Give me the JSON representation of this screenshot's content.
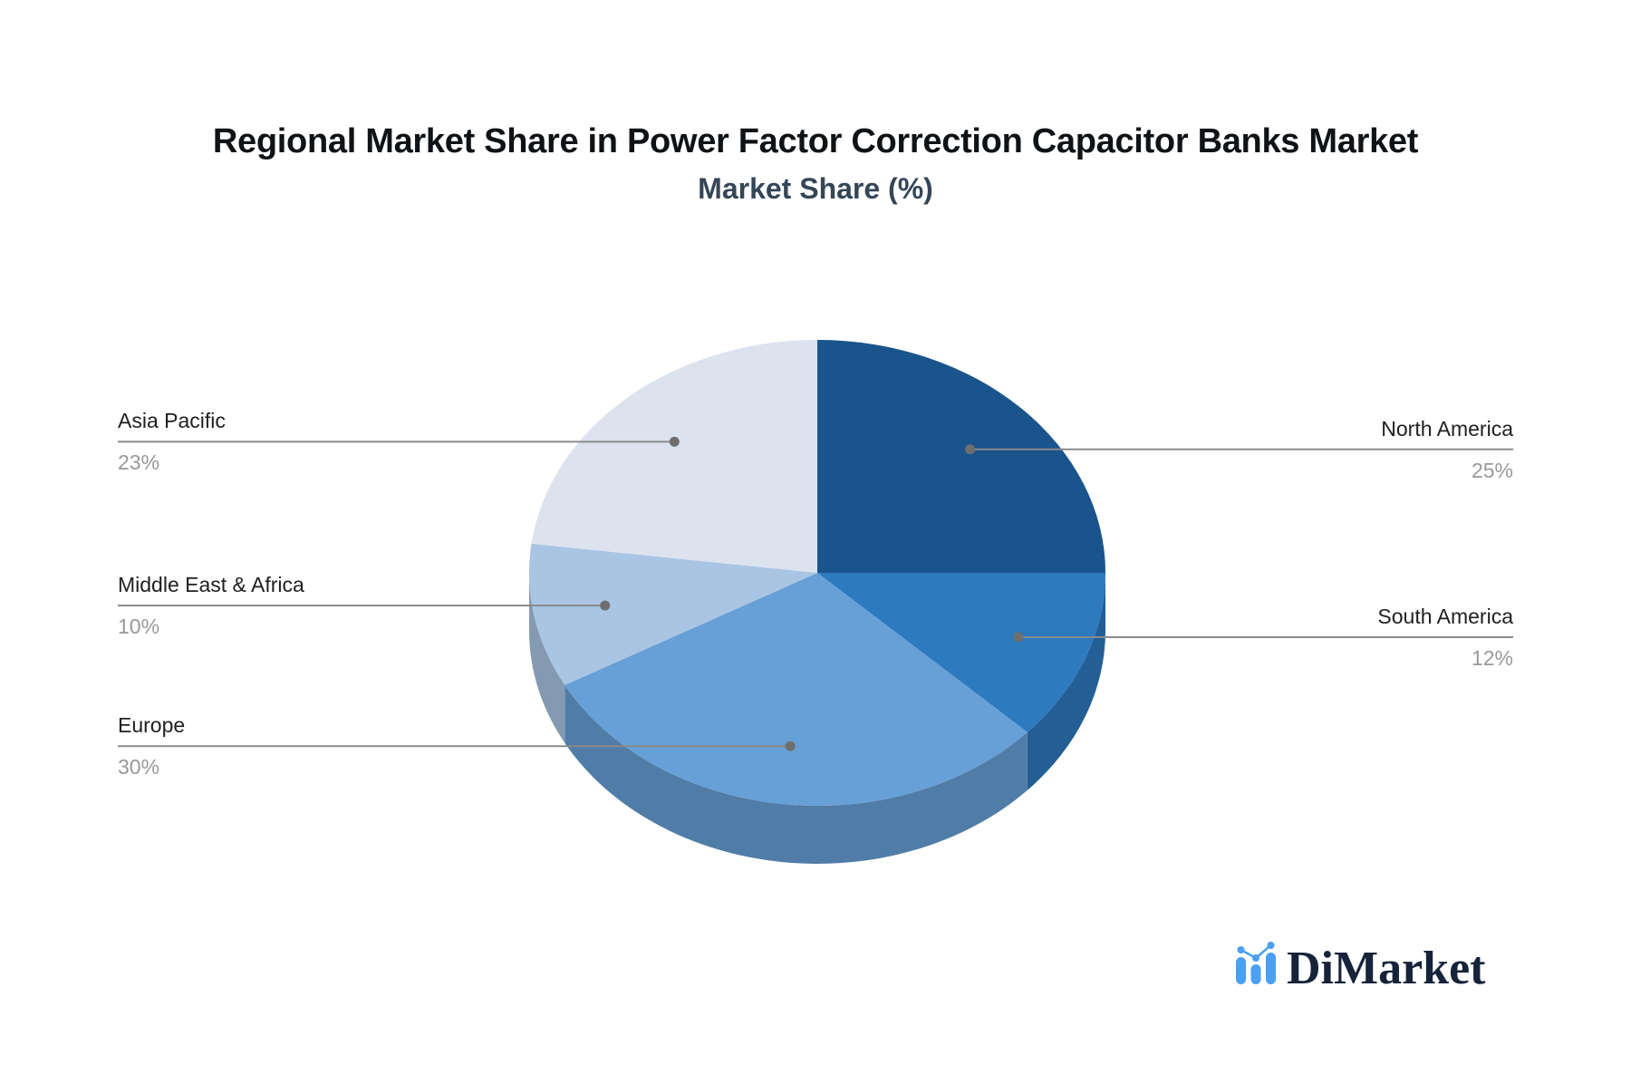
{
  "header": {
    "title": "Regional Market Share in Power Factor Correction Capacitor Banks Market",
    "subtitle": "Market Share (%)"
  },
  "chart_data": {
    "type": "pie",
    "style": "3d",
    "title": "Regional Market Share in Power Factor Correction Capacitor Banks Market",
    "subtitle": "Market Share (%)",
    "unit": "%",
    "direction": "clockwise",
    "start_angle_deg": 0,
    "labels": [
      "North America",
      "South America",
      "Europe",
      "Middle East & Africa",
      "Asia Pacific"
    ],
    "values": [
      25,
      12,
      30,
      10,
      23
    ],
    "display_values": [
      "25%",
      "12%",
      "30%",
      "10%",
      "23%"
    ],
    "colors": [
      "#1A548C",
      "#2D7ABF",
      "#67A0D6",
      "#A9C5E3",
      "#DCE3EF"
    ],
    "legend_position": "none",
    "grid": false,
    "leader_line_color": "#8A8A8A",
    "leader_dot_color": "#6E6E6E",
    "label_text_color": "#202020",
    "value_text_color": "#98999B"
  },
  "logo": {
    "text": "DiMarket",
    "icon": "bar-chart-trend-icon",
    "icon_color": "#4AA0F2",
    "text_color": "#16233B"
  }
}
